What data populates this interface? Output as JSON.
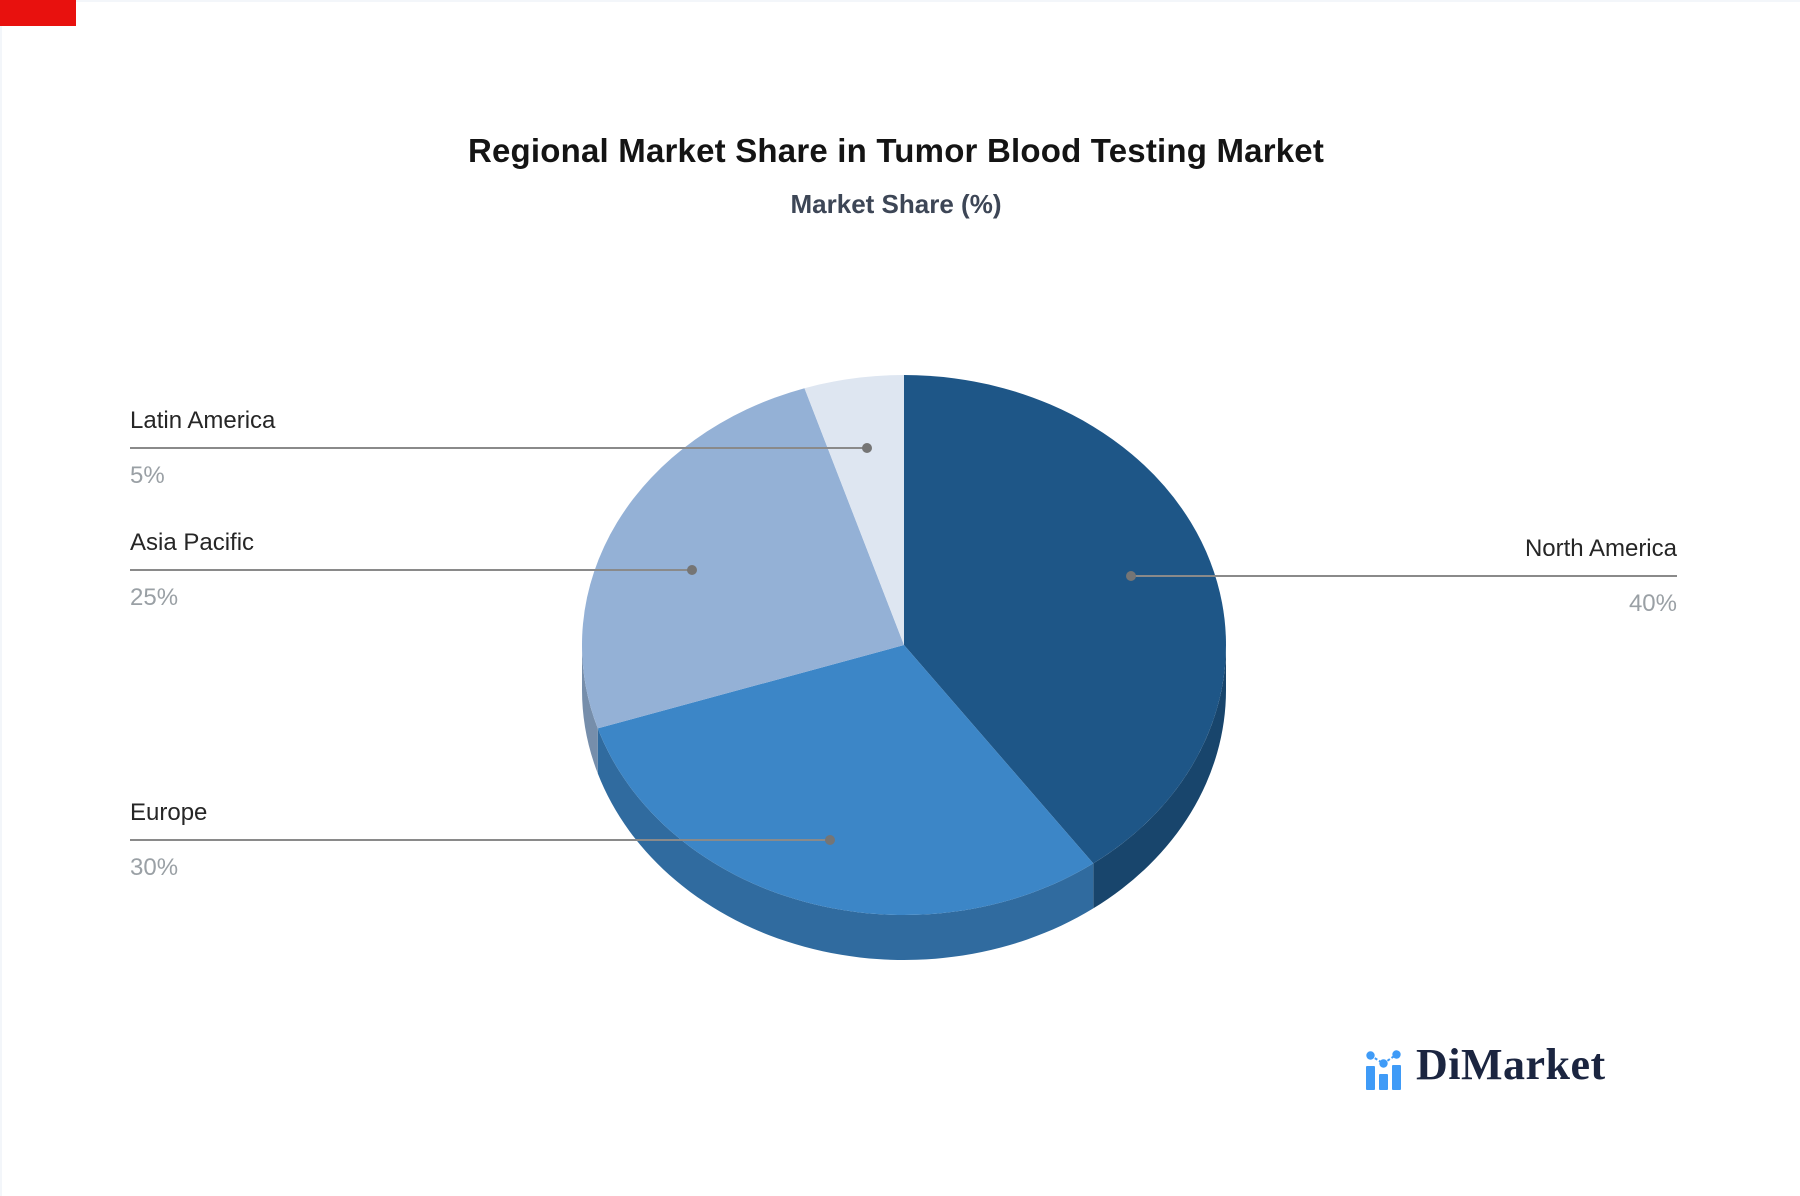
{
  "page": {
    "background": "#ffffff"
  },
  "marker": {
    "color": "#e8110e"
  },
  "chart_data": {
    "type": "pie",
    "style": "3d",
    "title": "Regional Market Share in Tumor Blood Testing Market",
    "subtitle": "Market Share (%)",
    "direction": "clockwise",
    "start_angle_deg": 0,
    "value_format": "{value}%",
    "legend_position": "callout-labels",
    "slices": [
      {
        "label": "North America",
        "value": 40,
        "color": "#1e5687",
        "label_side": "right"
      },
      {
        "label": "Europe",
        "value": 30,
        "color": "#3c86c7",
        "label_side": "left"
      },
      {
        "label": "Asia Pacific",
        "value": 25,
        "color": "#94b1d6",
        "label_side": "left"
      },
      {
        "label": "Latin America",
        "value": 5,
        "color": "#dee6f1",
        "label_side": "left"
      }
    ],
    "callout": {
      "name_color": "#262626",
      "value_color": "#9aa0a5",
      "line_color": "#8a8a8a",
      "dot_color": "#757575"
    }
  },
  "logo": {
    "text": "DiMarket",
    "icon": "bar-chart-logo-icon",
    "icon_color": "#3f9bf7",
    "text_color": "#1b2540"
  }
}
